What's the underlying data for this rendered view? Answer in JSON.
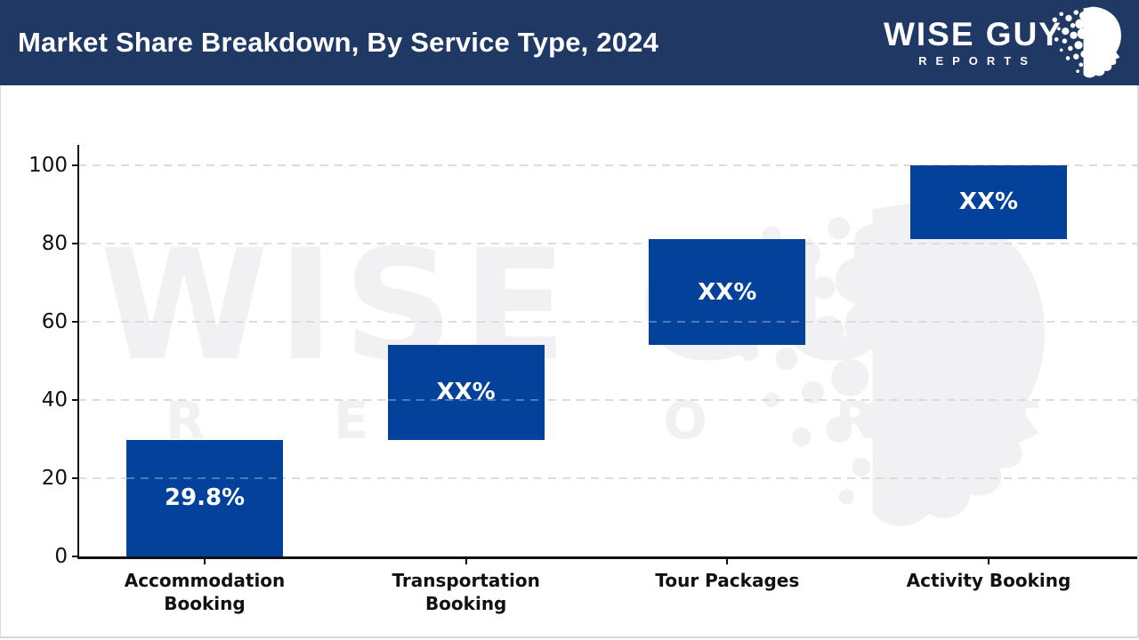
{
  "header": {
    "title": "Market Share Breakdown, By Service Type, 2024",
    "bg_color": "#1f3864",
    "logo": {
      "line1": "WISE GUY",
      "line2": "REPORTS"
    }
  },
  "watermark": {
    "line1": "WISE GUY",
    "line2": "R E P O R T S"
  },
  "chart_data": {
    "type": "bar",
    "subtype": "waterfall",
    "title": "Market Share Breakdown, By Service Type, 2024",
    "categories": [
      "Accommodation\nBooking",
      "Transportation\nBooking",
      "Tour Packages",
      "Activity Booking"
    ],
    "segments": [
      {
        "category": "Accommodation Booking",
        "start": 0,
        "end": 29.8,
        "display": "29.8%"
      },
      {
        "category": "Transportation Booking",
        "start": 29.8,
        "end": 54,
        "display": "XX%"
      },
      {
        "category": "Tour Packages",
        "start": 54,
        "end": 81,
        "display": "XX%"
      },
      {
        "category": "Activity Booking",
        "start": 81,
        "end": 100,
        "display": "XX%"
      }
    ],
    "xlabel": "",
    "ylabel": "",
    "ylim": [
      0,
      100
    ],
    "yticks": [
      0,
      20,
      40,
      60,
      80,
      100
    ],
    "grid": true,
    "legend": false,
    "bar_color": "#04419a",
    "bar_label_color": "#ffffff",
    "grid_color": "#dcdcdc",
    "axis_color": "#111111"
  }
}
